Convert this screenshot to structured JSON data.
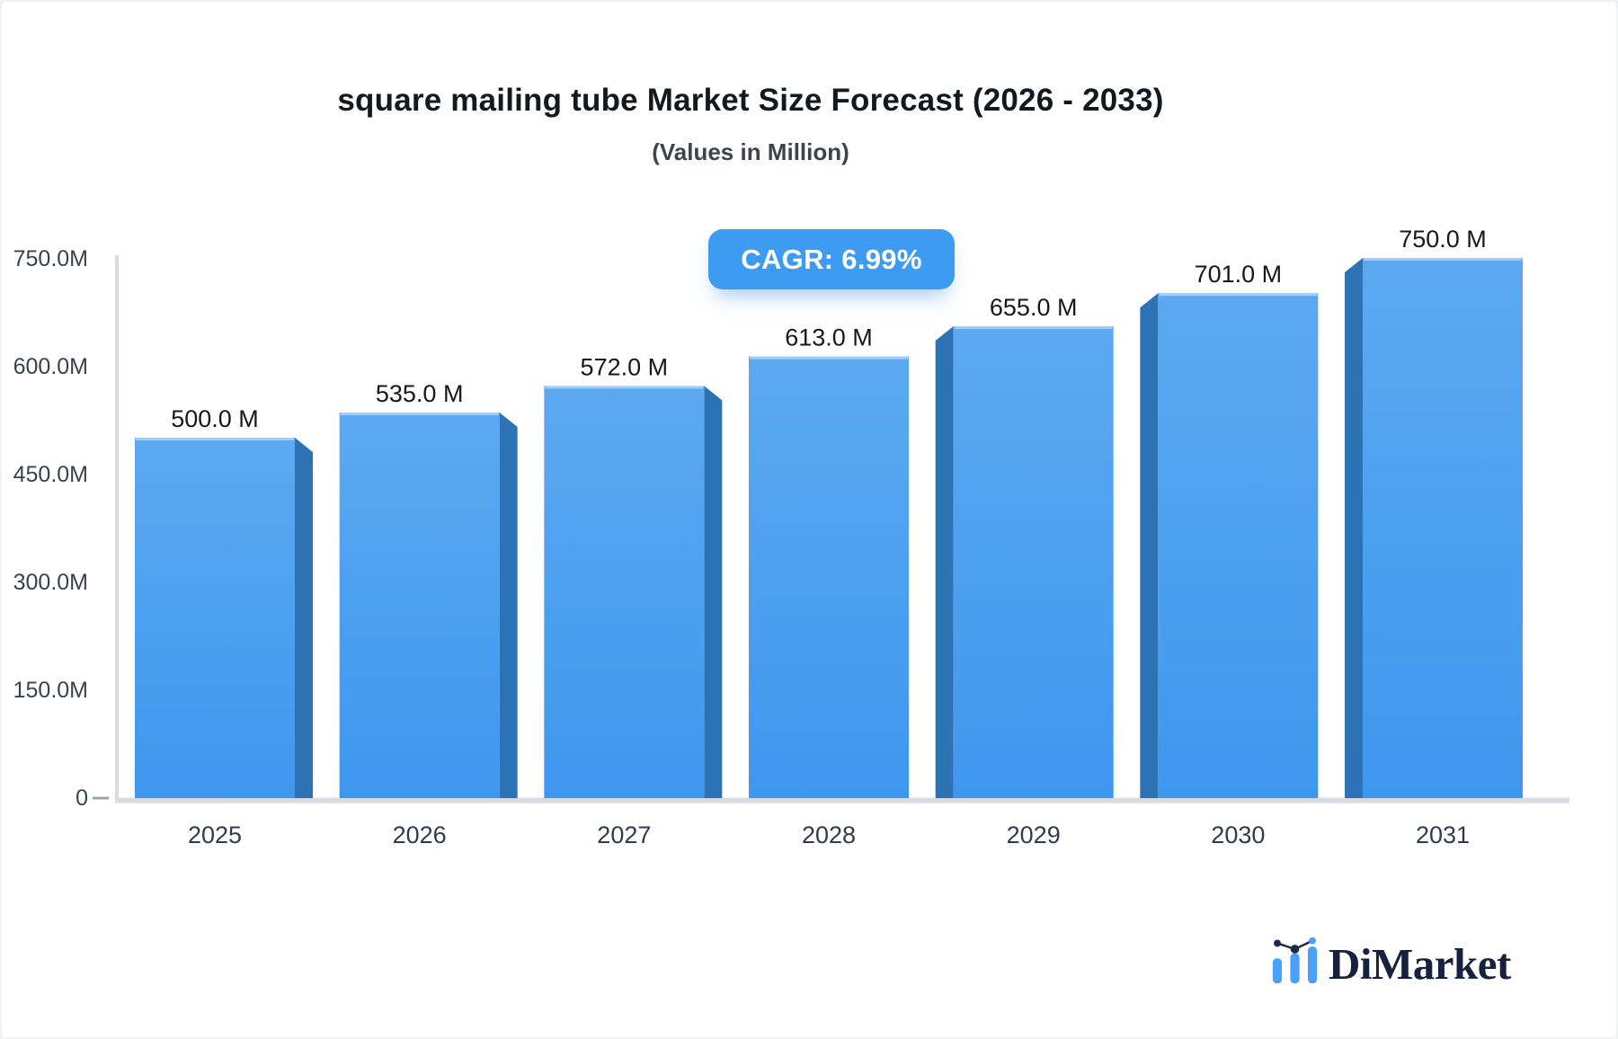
{
  "page": {
    "title": "square mailing tube Market Size Forecast (2026 - 2033)",
    "subtitle": "(Values in Million)",
    "cagr_label": "CAGR: 6.99%",
    "brand": "DiMarket"
  },
  "colors": {
    "bar_front_top": "#5CA9F1",
    "bar_front_bottom": "#3E97EE",
    "bar_side": "#2E72B6",
    "badge_bg": "#3D9BF2",
    "axis_line": "#D9DDE3",
    "zero_tick": "#9CA3AF",
    "y_tick_text": "#39424E",
    "x_tick_text": "#2F3B4E",
    "value_text": "#17181A",
    "brand_navy": "#1B2A4A",
    "brand_blue": "#4AA0F6"
  },
  "chart_data": {
    "type": "bar",
    "title": "square mailing tube Market Size Forecast (2026 - 2033)",
    "subtitle": "(Values in Million)",
    "unit": "Million",
    "cagr": "6.99%",
    "categories": [
      "2025",
      "2026",
      "2027",
      "2028",
      "2029",
      "2030",
      "2031"
    ],
    "values": [
      500.0,
      535.0,
      572.0,
      613.0,
      655.0,
      701.0,
      750.0
    ],
    "value_labels": [
      "500.0 M",
      "535.0 M",
      "572.0 M",
      "613.0 M",
      "655.0 M",
      "701.0 M",
      "750.0 M"
    ],
    "y_axis": {
      "range": [
        0,
        750
      ],
      "ticks": [
        0,
        150,
        300,
        450,
        600,
        750
      ],
      "tick_labels": [
        "0",
        "150.0M",
        "300.0M",
        "450.0M",
        "600.0M",
        "750.0M"
      ]
    },
    "grid": "off",
    "legend": "none"
  }
}
